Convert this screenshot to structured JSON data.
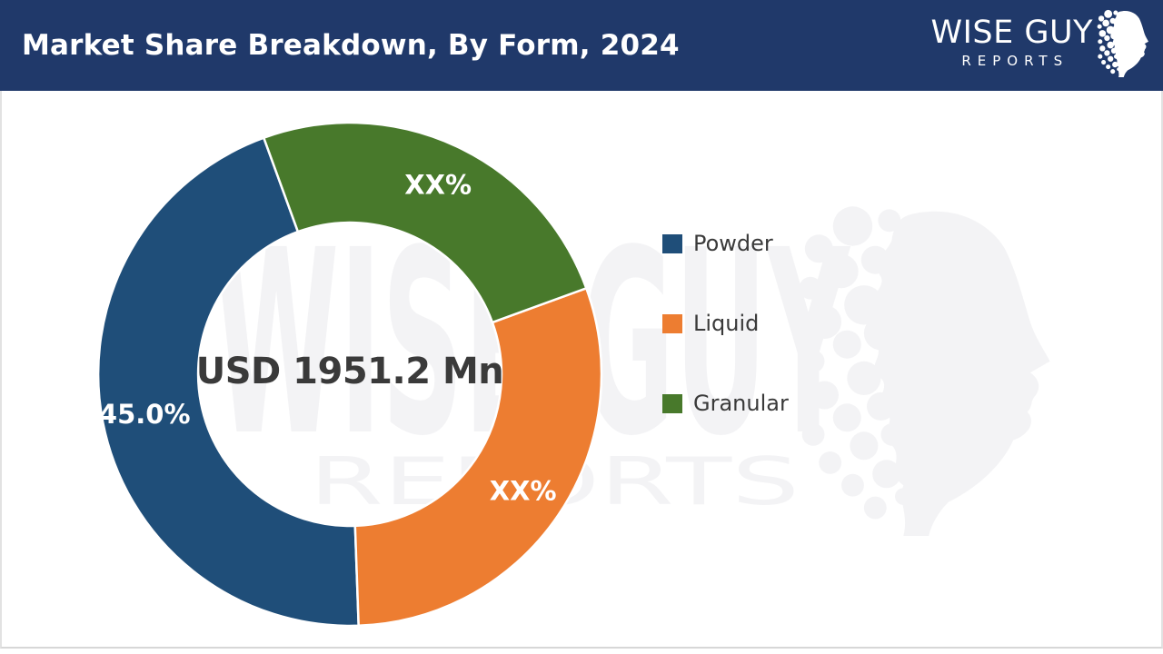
{
  "header": {
    "title": "Market Share Breakdown, By Form, 2024",
    "logo": {
      "line1": "WISE GUY",
      "line2": "REPORTS"
    }
  },
  "chart_data": {
    "type": "pie",
    "subtype": "donut",
    "title": "Market Share Breakdown, By Form, 2024",
    "center_label": "USD 1951.2 Mn",
    "categories": [
      "Powder",
      "Liquid",
      "Granular"
    ],
    "values": [
      45.0,
      30.0,
      25.0
    ],
    "value_labels": [
      "45.0%",
      "XX%",
      "XX%"
    ],
    "colors": [
      "#1f4e79",
      "#ed7d31",
      "#48792b"
    ],
    "start_angle_deg": 110,
    "counterclockwise": true,
    "inner_radius_ratio": 0.6,
    "legend_position": "right"
  },
  "legend": {
    "items": [
      {
        "label": "Powder",
        "color": "#1f4e79"
      },
      {
        "label": "Liquid",
        "color": "#ed7d31"
      },
      {
        "label": "Granular",
        "color": "#48792b"
      }
    ]
  },
  "watermark": {
    "line1": "WISE GUY",
    "line2": "REPORTS"
  },
  "colors": {
    "header_bg": "#20396a",
    "header_text": "#ffffff",
    "center_text": "#3a3a3a",
    "slice_label_text": "#ffffff",
    "watermark_gray": "#f3f3f5",
    "card_border": "#e0e0e0"
  }
}
